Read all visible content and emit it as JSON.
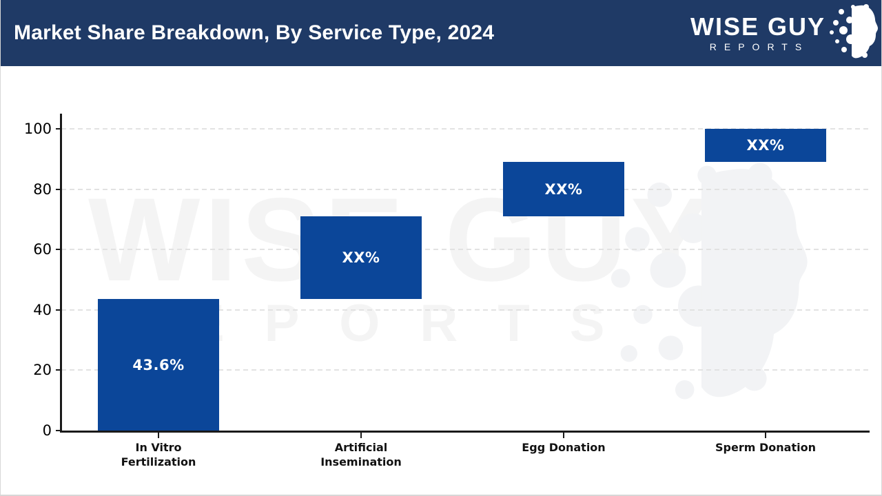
{
  "header": {
    "title": "Market Share Breakdown, By Service Type, 2024",
    "logo": {
      "line1": "WISE GUY",
      "line2": "REPORTS"
    }
  },
  "watermark": {
    "line1": "WISE GUY",
    "line2": "REPORTS"
  },
  "colors": {
    "header_bg": "#1F3A66",
    "bar_fill": "#0B4699",
    "bar_label": "#FFFFFF",
    "watermark": "#F2F3F5",
    "gridline": "#E2E2E2",
    "axis": "#1A1A1A"
  },
  "chart_data": {
    "type": "bar",
    "subtype": "waterfall",
    "title": "Market Share Breakdown, By Service Type, 2024",
    "xlabel": "",
    "ylabel": "",
    "ylim": [
      0,
      105
    ],
    "yticks": [
      0,
      20,
      40,
      60,
      80,
      100
    ],
    "grid": "horizontal-dashed",
    "legend": "none",
    "categories": [
      "In Vitro Fertilization",
      "Artificial Insemination",
      "Egg Donation",
      "Sperm Donation"
    ],
    "category_label_lines": [
      [
        "In Vitro",
        "Fertilization"
      ],
      [
        "Artificial",
        "Insemination"
      ],
      [
        "Egg Donation"
      ],
      [
        "Sperm Donation"
      ]
    ],
    "segments": [
      {
        "category": "In Vitro Fertilization",
        "start": 0,
        "end": 43.6,
        "label": "43.6%"
      },
      {
        "category": "Artificial Insemination",
        "start": 43.6,
        "end": 71,
        "label": "XX%"
      },
      {
        "category": "Egg Donation",
        "start": 71,
        "end": 89,
        "label": "XX%"
      },
      {
        "category": "Sperm Donation",
        "start": 89,
        "end": 100,
        "label": "XX%"
      }
    ]
  }
}
